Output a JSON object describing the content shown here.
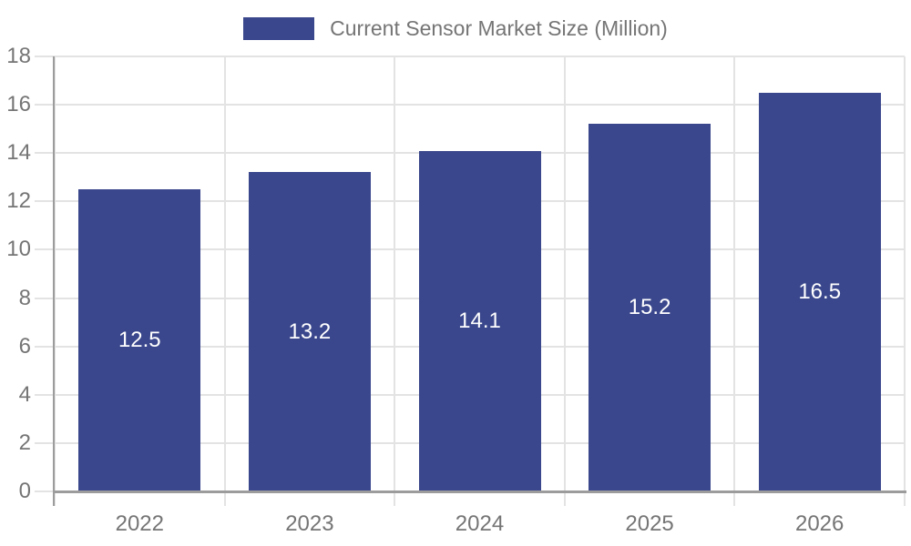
{
  "chart_data": {
    "type": "bar",
    "series_name": "Current Sensor Market Size (Million)",
    "categories": [
      "2022",
      "2023",
      "2024",
      "2025",
      "2026"
    ],
    "values": [
      12.5,
      13.2,
      14.1,
      15.2,
      16.5
    ],
    "value_labels": [
      "12.5",
      "13.2",
      "14.1",
      "15.2",
      "16.5"
    ],
    "ylim": [
      0,
      18
    ],
    "ytick_step": 2,
    "grid": "horizontal and vertical, light gray",
    "legend_position": "top-center",
    "bar_color": "#3A478C",
    "value_label_color": "#FFFFFF",
    "axis_text_color": "#757575",
    "gridline_color": "#E3E3E3",
    "axis_line_color": "#9C9C9C"
  }
}
